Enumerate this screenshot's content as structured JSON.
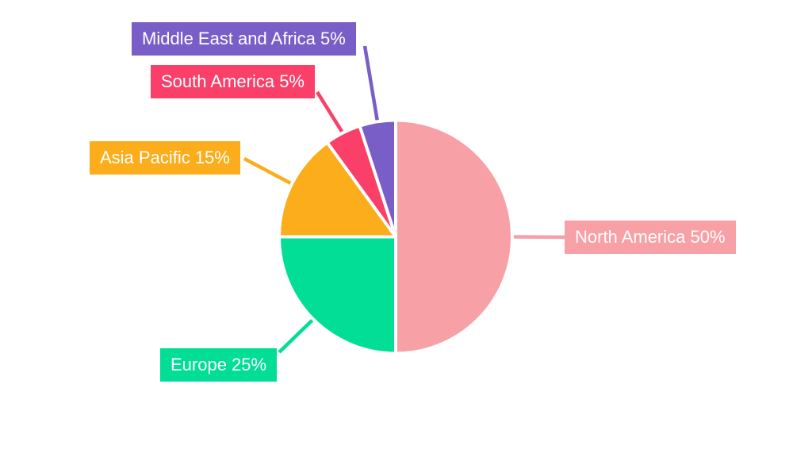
{
  "chart_data": {
    "type": "pie",
    "title": "",
    "categories": [
      "North America",
      "Europe",
      "Asia Pacific",
      "South America",
      "Middle East and Africa"
    ],
    "values": [
      50,
      25,
      15,
      5,
      5
    ],
    "unit": "%",
    "series_colors": [
      "#F7A0A6",
      "#02DE95",
      "#FBAD1B",
      "#FA3F68",
      "#7A5EC7"
    ],
    "slice_labels": [
      "North America 50%",
      "Europe 25%",
      "Asia Pacific 15%",
      "South America 5%",
      "Middle East and Africa 5%"
    ],
    "start_angle": "12 o'clock",
    "direction": "clockwise",
    "legend_position": "callout-labels",
    "background_color": "#FFFFFF",
    "label_text_color": "#FFFFFF",
    "slice_gap_color": "#FFFFFF"
  }
}
